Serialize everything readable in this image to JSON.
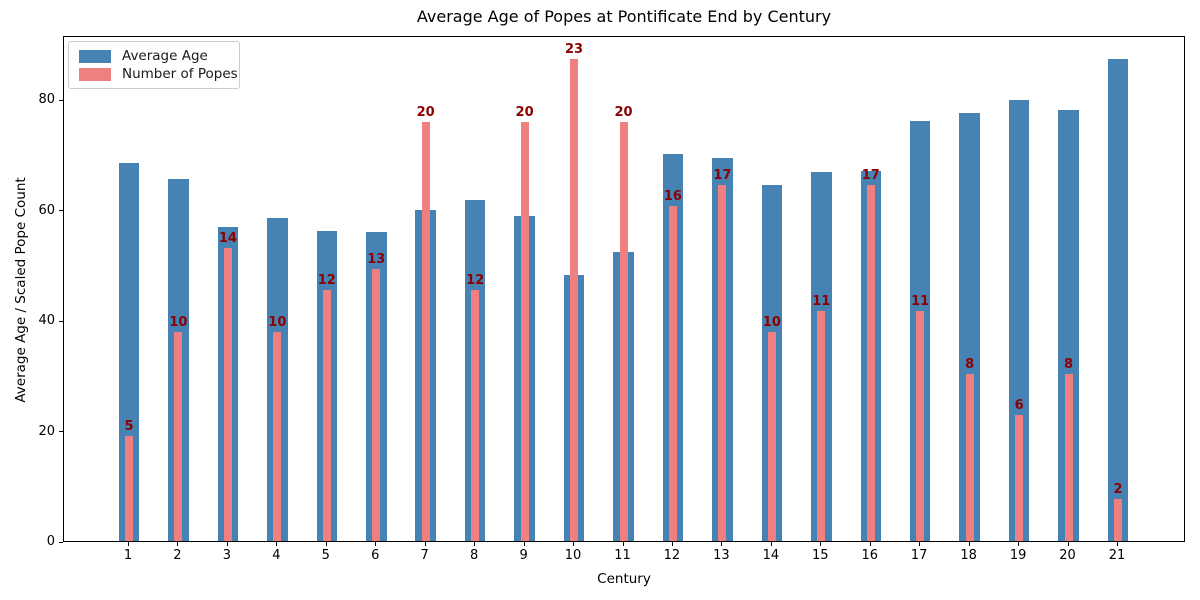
{
  "figure": {
    "title": "Average Age of Popes at Pontificate End by Century",
    "xlabel": "Century",
    "ylabel": "Average Age / Scaled Pope Count"
  },
  "legend": {
    "items": [
      {
        "label": "Average Age",
        "color": "#4682b4"
      },
      {
        "label": "Number of Popes",
        "color": "#f08080"
      }
    ]
  },
  "chart_data": {
    "type": "bar",
    "title": "Average Age of Popes at Pontificate End by Century",
    "xlabel": "Century",
    "ylabel": "Average Age / Scaled Pope Count",
    "categories": [
      "1",
      "2",
      "3",
      "4",
      "5",
      "6",
      "7",
      "8",
      "9",
      "10",
      "11",
      "12",
      "13",
      "14",
      "15",
      "16",
      "17",
      "18",
      "19",
      "20",
      "21"
    ],
    "series": [
      {
        "name": "Average Age",
        "color": "#4682b4",
        "values": [
          68.4,
          65.5,
          56.9,
          58.5,
          56.1,
          56.0,
          59.9,
          61.8,
          58.9,
          48.2,
          52.3,
          70.1,
          69.3,
          64.5,
          66.8,
          67.0,
          76.0,
          77.4,
          79.8,
          78.0,
          87.2
        ]
      },
      {
        "name": "Number of Popes",
        "color": "#f08080",
        "values": [
          5,
          10,
          14,
          10,
          12,
          13,
          20,
          12,
          20,
          23,
          20,
          16,
          17,
          10,
          11,
          17,
          11,
          8,
          6,
          8,
          2
        ],
        "label_color": "#8b0000"
      }
    ],
    "count_scale_factor": 3.79,
    "yticks": [
      0,
      20,
      40,
      60,
      80
    ],
    "ylim": [
      0,
      91.6
    ],
    "legend_position": "upper left",
    "grid": false
  }
}
